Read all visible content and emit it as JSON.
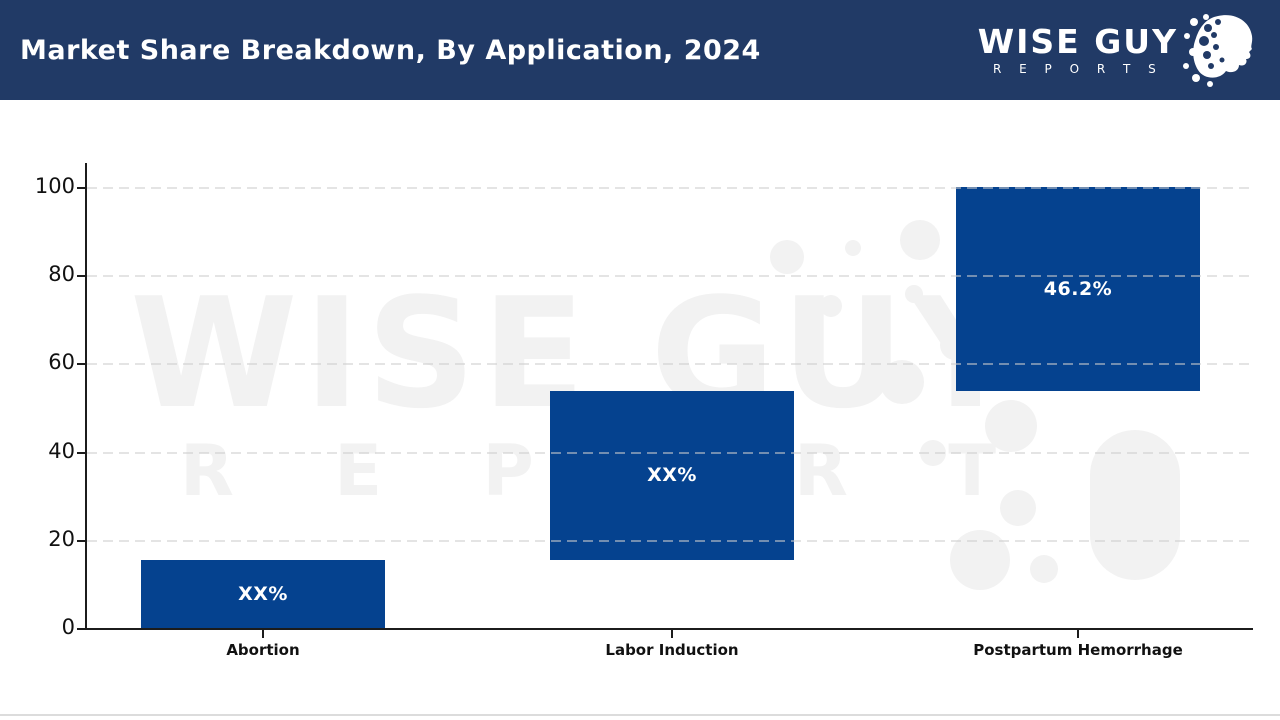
{
  "header": {
    "title": "Market Share Breakdown, By Application, 2024",
    "bg_color": "#213a66",
    "logo": {
      "line1": "WISE GUY",
      "line2": "R E P O R T S",
      "face_icon": "head-profile-dots"
    }
  },
  "watermark": {
    "line1": "WISE GUY",
    "line2": "R E P O R T S",
    "color": "#f2f2f2"
  },
  "chart_data": {
    "type": "bar",
    "subtype": "waterfall",
    "title": "Market Share Breakdown, By Application, 2024",
    "categories": [
      "Abortion",
      "Labor Induction",
      "Postpartum Hemorrhage"
    ],
    "segments": [
      {
        "category": "Abortion",
        "start": 0,
        "end": 15.5,
        "label": "XX%"
      },
      {
        "category": "Labor Induction",
        "start": 15.5,
        "end": 53.8,
        "label": "XX%"
      },
      {
        "category": "Postpartum Hemorrhage",
        "start": 53.8,
        "end": 100,
        "label": "46.2%"
      }
    ],
    "xlabel": "",
    "ylabel": "",
    "ylim": [
      0,
      100
    ],
    "y_ticks": [
      0,
      20,
      40,
      60,
      80,
      100
    ],
    "grid": "horizontal dashed gridlines, drawn over bars",
    "legend": "none",
    "bar_color": "#05428f",
    "bar_label_color": "#ffffff",
    "axis_color": "#1c1c1c"
  }
}
